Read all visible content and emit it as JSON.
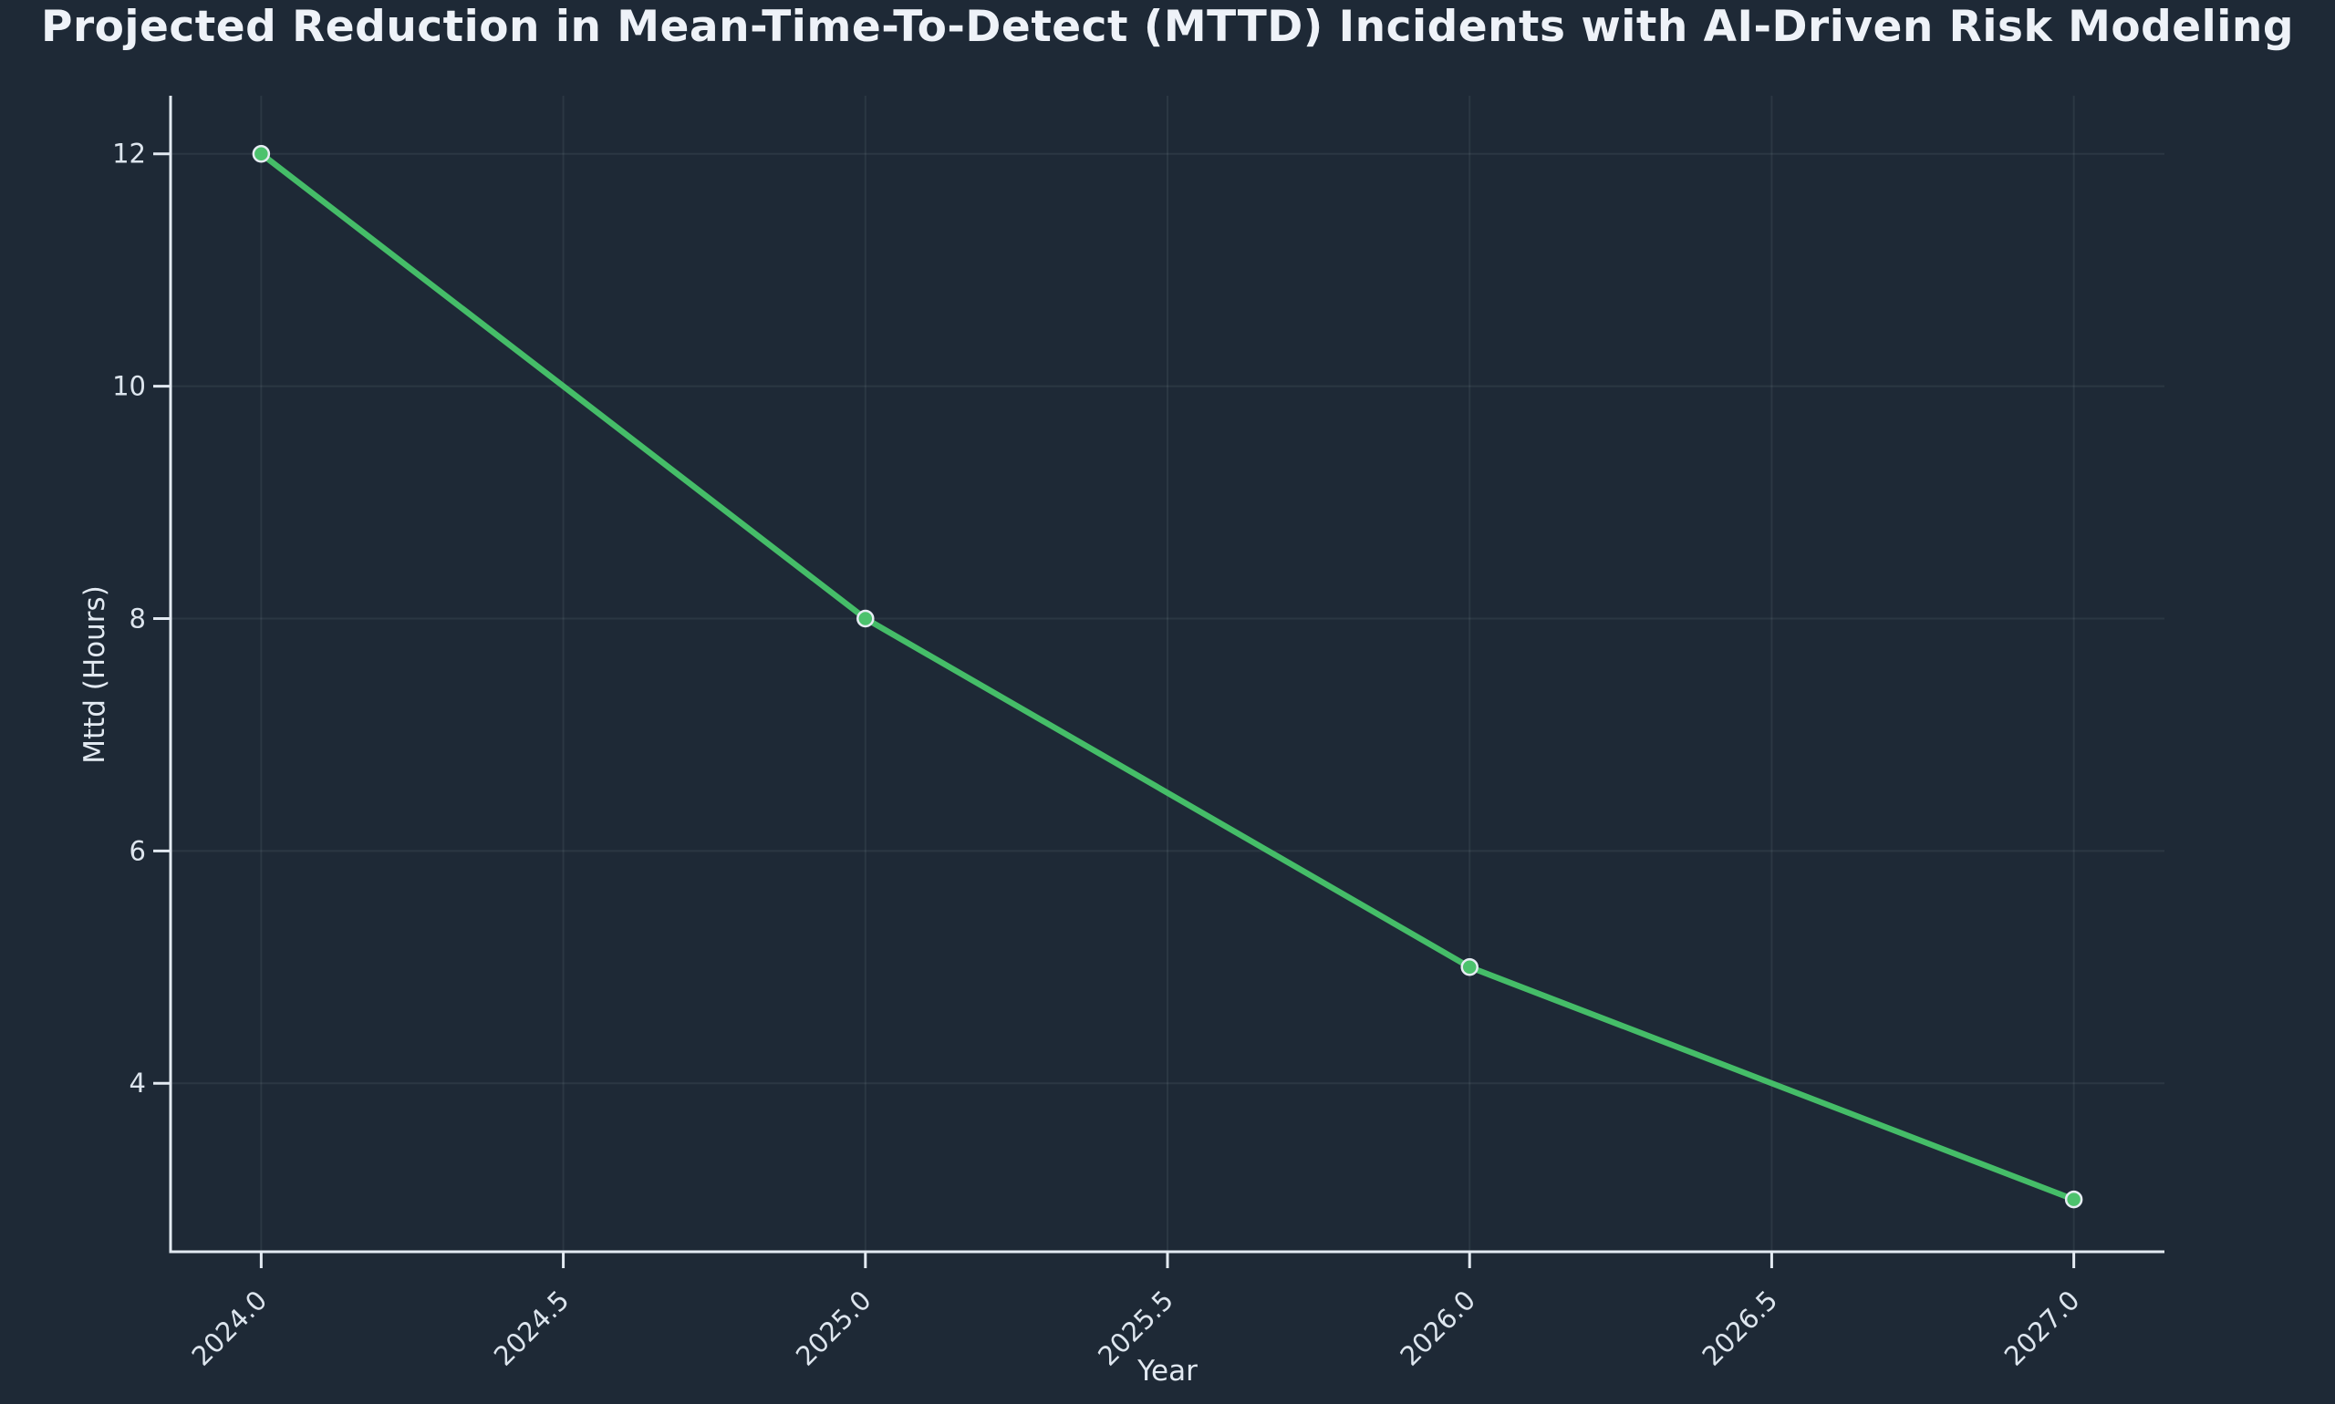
{
  "header": {
    "title": "Projected Reduction in Mean-Time-To-Detect (MTTD) Incidents with AI-Driven Risk Modeling"
  },
  "chart_data": {
    "type": "line",
    "title": "Projected Reduction in Mean-Time-To-Detect (MTTD) Incidents with AI-Driven Risk Modeling",
    "xlabel": "Year",
    "ylabel": "Mttd (Hours)",
    "x": [
      2024,
      2025,
      2026,
      2027
    ],
    "series": [
      {
        "name": "MTTD",
        "values": [
          12,
          8,
          5,
          3
        ]
      }
    ],
    "xlim": [
      2023.85,
      2027.15
    ],
    "ylim": [
      2.55,
      12.5
    ],
    "xticks": {
      "values": [
        2024.0,
        2024.5,
        2025.0,
        2025.5,
        2026.0,
        2026.5,
        2027.0
      ],
      "labels": [
        "2024.0",
        "2024.5",
        "2025.0",
        "2025.5",
        "2026.0",
        "2026.5",
        "2027.0"
      ],
      "rotation_deg": 45
    },
    "yticks": {
      "values": [
        4,
        6,
        8,
        10,
        12
      ],
      "labels": [
        "4",
        "6",
        "8",
        "10",
        "12"
      ]
    },
    "grid": true,
    "legend": false,
    "colors": {
      "background": "#1e2936",
      "line": "#45bd68",
      "marker_fill": "#4cc26d",
      "marker_edge": "#e6ecf3",
      "spine": "#e3eaf2",
      "tick_label": "#dde5ee",
      "grid": "rgba(226,235,245,0.07)",
      "title_text": "#eef2f8"
    }
  }
}
